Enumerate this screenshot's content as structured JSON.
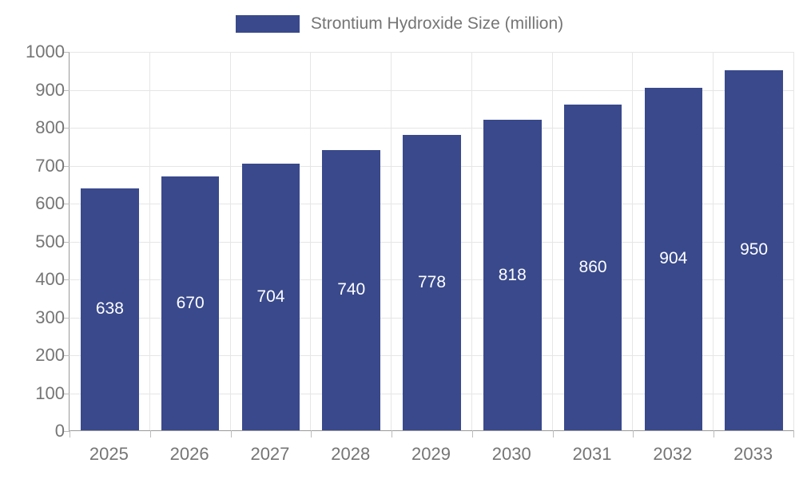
{
  "legend": {
    "label": "Strontium Hydroxide Size (million)"
  },
  "chart_data": {
    "type": "bar",
    "title": "Strontium Hydroxide Size (million)",
    "categories": [
      "2025",
      "2026",
      "2027",
      "2028",
      "2029",
      "2030",
      "2031",
      "2032",
      "2033"
    ],
    "values": [
      638,
      670,
      704,
      740,
      778,
      818,
      860,
      904,
      950
    ],
    "series_name": "Strontium Hydroxide Size (million)",
    "xlabel": "",
    "ylabel": "",
    "ylim": [
      0,
      1000
    ],
    "ytick_step": 100,
    "grid": true,
    "legend_position": "top-center",
    "value_labels": "inside-center",
    "colors": {
      "bar": "#39498C",
      "value_label": "#ffffff",
      "axis_text": "#757575",
      "gridline": "#e6e6e6",
      "axis_line": "#999999",
      "tick": "#bbbbbb"
    }
  }
}
